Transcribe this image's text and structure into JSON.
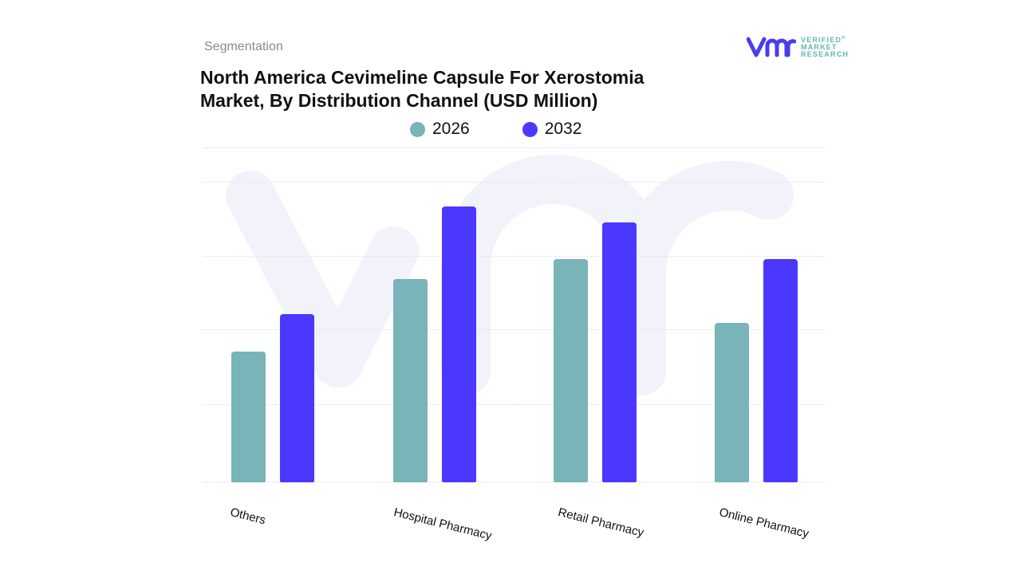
{
  "header": {
    "section_label": "Segmentation",
    "title": "North America Cevimeline Capsule For Xerostomia Market, By Distribution Channel (USD Million)"
  },
  "logo": {
    "mark": "vmr",
    "line1": "VERIFIED",
    "line2": "MARKET",
    "line3": "RESEARCH",
    "registered": "®",
    "mark_color": "#4b3cf0",
    "text_color": "#5fb8b0"
  },
  "legend": [
    {
      "label": "2026",
      "color": "#78b4b8"
    },
    {
      "label": "2032",
      "color": "#4b38ff"
    }
  ],
  "chart_data": {
    "type": "bar",
    "title": "North America Cevimeline Capsule For Xerostomia Market, By Distribution Channel (USD Million)",
    "xlabel": "",
    "ylabel": "",
    "categories": [
      "Others",
      "Hospital Pharmacy",
      "Retail Pharmacy",
      "Online Pharmacy"
    ],
    "series": [
      {
        "name": "2026",
        "color": "#78b4b8",
        "values": [
          164,
          255,
          280,
          200
        ]
      },
      {
        "name": "2032",
        "color": "#4b38ff",
        "values": [
          211,
          346,
          326,
          280
        ]
      }
    ],
    "ylim": [
      0,
      376
    ],
    "y_tick_labels_visible": false,
    "grid": true,
    "legend_position": "top",
    "note": "No numeric axis shown; values are relative bar heights in pixels"
  }
}
